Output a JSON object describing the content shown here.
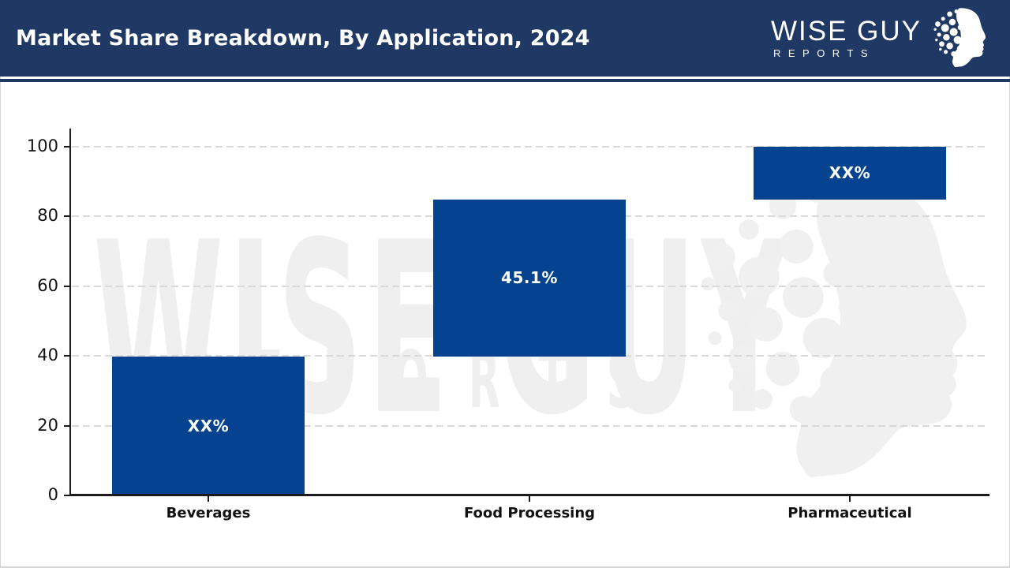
{
  "header": {
    "title": "Market Share Breakdown, By Application, 2024",
    "logo": {
      "line1": "WISE GUY",
      "line2": "REPORTS"
    }
  },
  "watermark": {
    "line1": "WISE GUY",
    "line2": "REPORTS"
  },
  "colors": {
    "header_bg": "#1f3864",
    "bar": "#05428f",
    "axis": "#1a1a1a",
    "grid": "#d9d9d9",
    "text": "#111111",
    "label_on_bar": "#ffffff",
    "watermark": "#efefef",
    "page_border": "#d6d6d6"
  },
  "chart_data": {
    "type": "waterfall",
    "title": "Market Share Breakdown, By Application, 2024",
    "categories": [
      "Beverages",
      "Food Processing",
      "Pharmaceutical"
    ],
    "segments": [
      {
        "category": "Beverages",
        "start": 0,
        "end": 39.8,
        "label": "XX%"
      },
      {
        "category": "Food Processing",
        "start": 39.8,
        "end": 84.9,
        "label": "45.1%"
      },
      {
        "category": "Pharmaceutical",
        "start": 84.9,
        "end": 100,
        "label": "XX%"
      }
    ],
    "values_shown": [
      "XX%",
      "45.1%",
      "XX%"
    ],
    "xlabel": "",
    "ylabel": "",
    "ylim": [
      0,
      100
    ],
    "yticks": [
      0,
      20,
      40,
      60,
      80,
      100
    ],
    "grid": "dashed-horizontal",
    "legend": "none",
    "bar_color": "#05428f"
  }
}
